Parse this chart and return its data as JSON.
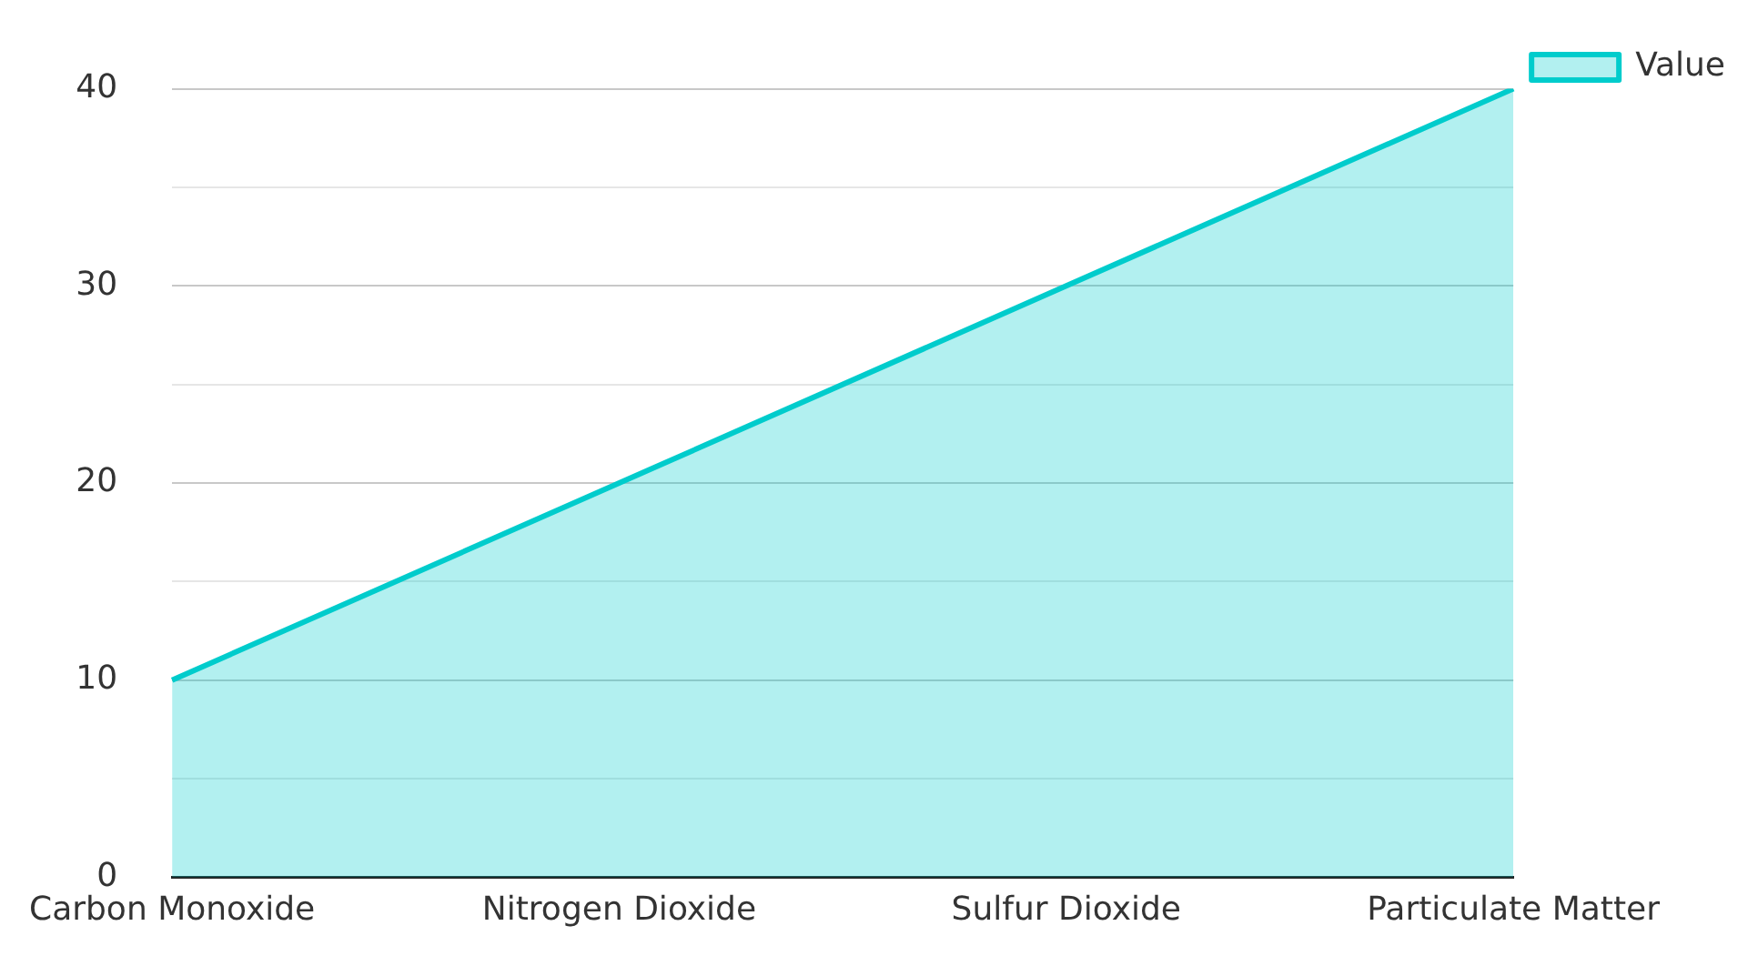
{
  "chart_data": {
    "type": "area",
    "categories": [
      "Carbon Monoxide",
      "Nitrogen Dioxide",
      "Sulfur Dioxide",
      "Particulate Matter"
    ],
    "series": [
      {
        "name": "Value",
        "color": "#00cccc",
        "values": [
          10,
          20,
          30,
          40
        ]
      }
    ],
    "ylim": [
      0,
      40
    ],
    "yticks": [
      0,
      {
        "value": 5,
        "label": null
      },
      10,
      {
        "value": 15,
        "label": null
      },
      20,
      {
        "value": 25,
        "label": null
      },
      30,
      {
        "value": 35,
        "label": null
      },
      40
    ],
    "grid": "y",
    "legend": "top right"
  }
}
